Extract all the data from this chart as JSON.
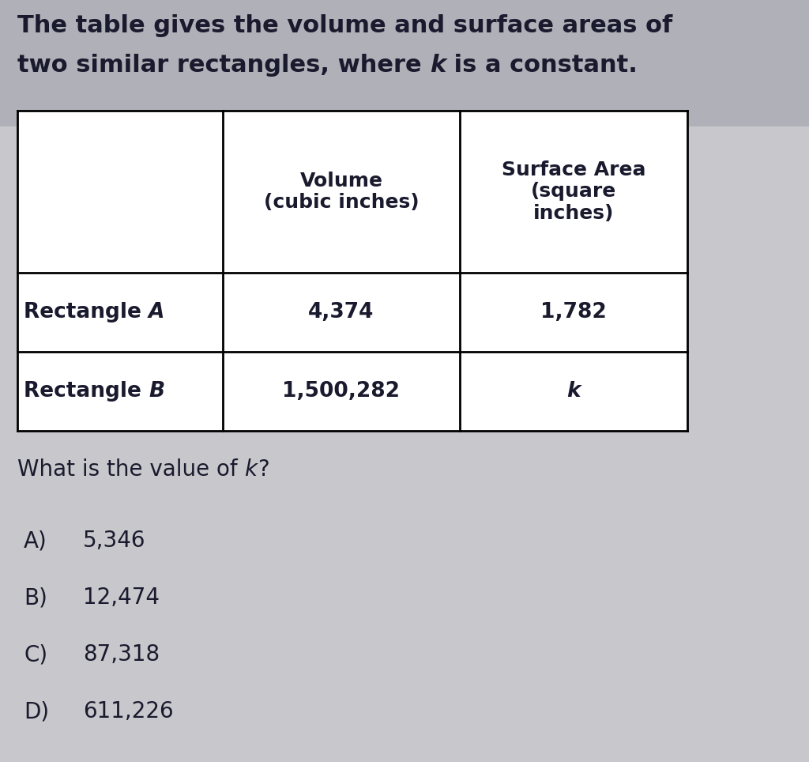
{
  "title_line1": "The table gives the volume and surface areas of",
  "title_line2_pre": "two similar rectangles, where ",
  "title_line2_italic": "k",
  "title_line2_post": " is a constant.",
  "col1_header": "Volume\n(cubic inches)",
  "col2_header": "Surface Area\n(square\ninches)",
  "row_a_label_pre": "Rectangle ",
  "row_a_label_italic": "A",
  "row_a_vol": "4,374",
  "row_a_sa": "1,782",
  "row_b_label_pre": "Rectangle ",
  "row_b_label_italic": "B",
  "row_b_vol": "1,500,282",
  "row_b_sa": "k",
  "question_pre": "What is the value of ",
  "question_italic": "k",
  "question_post": "?",
  "choices_letters": [
    "A)",
    "B)",
    "C)",
    "D)"
  ],
  "choices_values": [
    "5,346",
    "12,474",
    "87,318",
    "611,226"
  ],
  "bg_color": "#c8c8cc",
  "table_bg": "#e8e8ea",
  "text_color": "#1a1a2e",
  "title_fontsize": 22,
  "header_fontsize": 18,
  "cell_fontsize": 19,
  "question_fontsize": 20,
  "choice_fontsize": 20
}
